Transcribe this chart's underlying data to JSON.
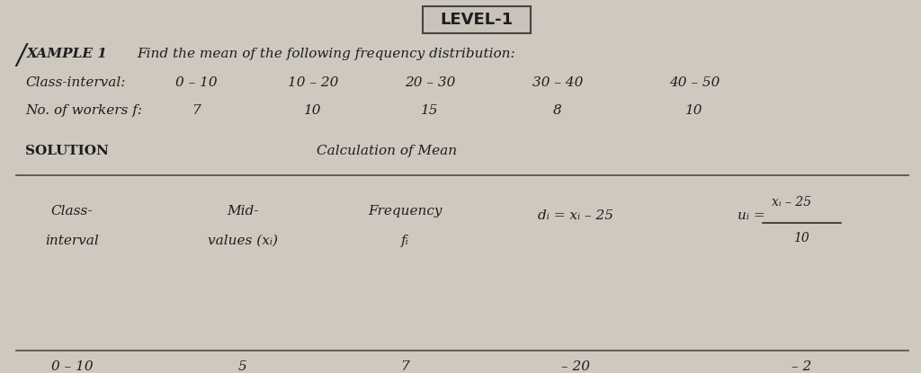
{
  "bg_color": "#cec8bf",
  "title_box_text": "LEVEL-1",
  "title_box_color": "#c8c2ba",
  "title_box_border": "#444444",
  "example_slash": "/",
  "example_label": "XAMPLE 1",
  "example_text": "Find the mean of the following frequency distribution:",
  "row1_label": "Class-interval:",
  "row1_values": [
    "0 – 10",
    "10 – 20",
    "20 – 30",
    "30 – 40",
    "40 – 50"
  ],
  "row2_label": "No. of workers f:",
  "row2_values": [
    "7",
    "10",
    "15",
    "8",
    "10"
  ],
  "solution_label": "SOLUTION",
  "calc_heading": "Calculation of Mean",
  "col1_line1": "Class-",
  "col1_line2": "interval",
  "col2_line1": "Mid-",
  "col2_line2": "values (xᵢ)",
  "col3_line1": "Frequency",
  "col3_line2": "fᵢ",
  "col4_text": "dᵢ = xᵢ – 25",
  "col5_text_num": "xᵢ – 25",
  "col5_text_denom": "10",
  "col5_prefix": "uᵢ =",
  "last_row": [
    "0 – 10",
    "5",
    "7",
    "– 20",
    "– 2"
  ],
  "text_color": "#1e1e1e",
  "line_color": "#555555"
}
